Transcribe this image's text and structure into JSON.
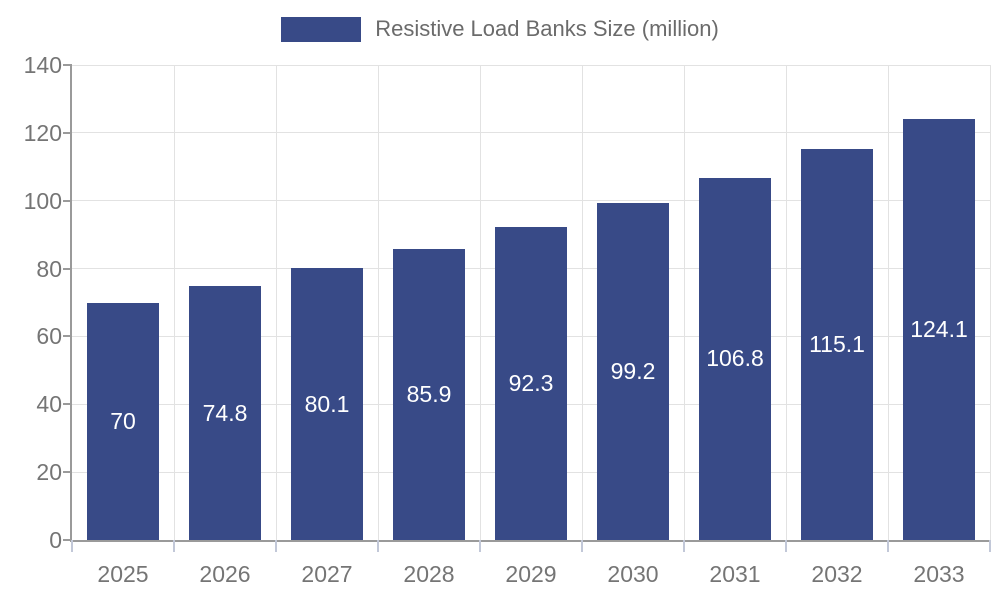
{
  "legend": {
    "label": "Resistive Load Banks Size (million)"
  },
  "chart_data": {
    "type": "bar",
    "title": "",
    "series_name": "Resistive Load Banks Size (million)",
    "categories": [
      "2025",
      "2026",
      "2027",
      "2028",
      "2029",
      "2030",
      "2031",
      "2032",
      "2033"
    ],
    "values": [
      70,
      74.8,
      80.1,
      85.9,
      92.3,
      99.2,
      106.8,
      115.1,
      124.1
    ],
    "value_labels": [
      "70",
      "74.8",
      "80.1",
      "85.9",
      "92.3",
      "99.2",
      "106.8",
      "115.1",
      "124.1"
    ],
    "xlabel": "",
    "ylabel": "",
    "ylim": [
      0,
      140
    ],
    "yticks": [
      0,
      20,
      40,
      60,
      80,
      100,
      120,
      140
    ],
    "grid": true,
    "legend_position": "top-center",
    "colors": {
      "bar": "#384A87",
      "value_label_text": "#ffffff",
      "axis_text": "#757575",
      "legend_text": "#6b6b6b",
      "gridline": "#e2e2e2",
      "axis_line": "#9a9a9a",
      "x_tick": "#c2c8d8"
    }
  }
}
